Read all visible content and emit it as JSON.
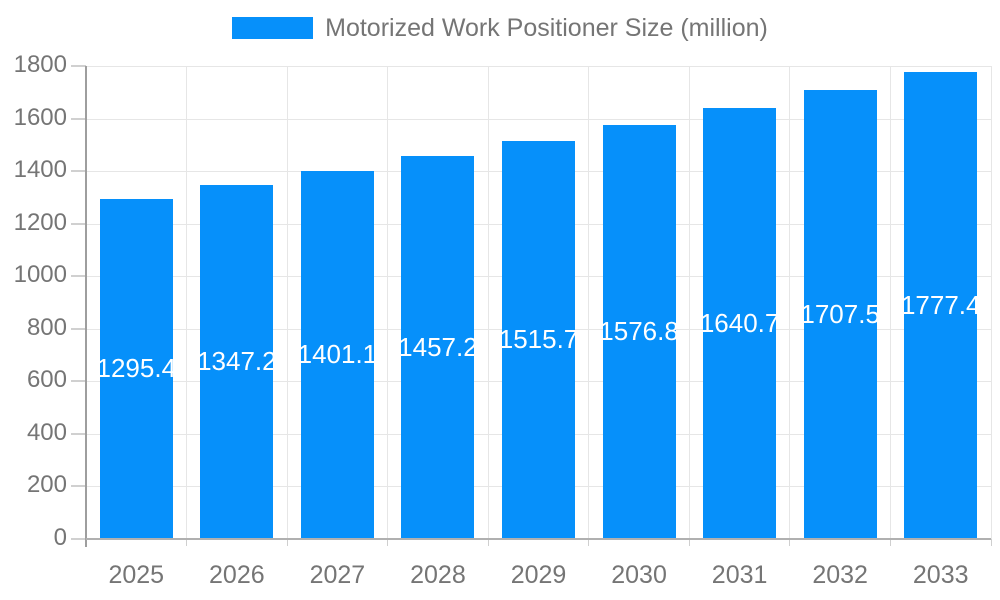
{
  "legend": {
    "label": "Motorized Work Positioner Size (million)"
  },
  "chart_data": {
    "type": "bar",
    "title": "Motorized Work Positioner Size (million)",
    "categories": [
      "2025",
      "2026",
      "2027",
      "2028",
      "2029",
      "2030",
      "2031",
      "2032",
      "2033"
    ],
    "series": [
      {
        "name": "Motorized Work Positioner Size (million)",
        "values": [
          1295.4,
          1347.2,
          1401.1,
          1457.2,
          1515.7,
          1576.8,
          1640.7,
          1707.5,
          1777.4
        ]
      }
    ],
    "value_labels": [
      "1295.4",
      "1347.2",
      "1401.1",
      "1457.2",
      "1515.7",
      "1576.8",
      "1640.7",
      "1707.5",
      "1777.4"
    ],
    "xlabel": "",
    "ylabel": "",
    "ylim": [
      0,
      1800
    ],
    "ytick_step": 200,
    "ytick_labels": [
      "0",
      "200",
      "400",
      "600",
      "800",
      "1000",
      "1200",
      "1400",
      "1600",
      "1800"
    ],
    "grid": true,
    "legend_position": "top",
    "colors": {
      "bar": "#0690fa",
      "bar_value_text": "#ffffff",
      "axis_text": "#757575",
      "legend_text": "#757575",
      "gridline": "#e6e6e6",
      "axis_line": "#9e9e9e",
      "baseline": "#b0b0b0"
    }
  }
}
